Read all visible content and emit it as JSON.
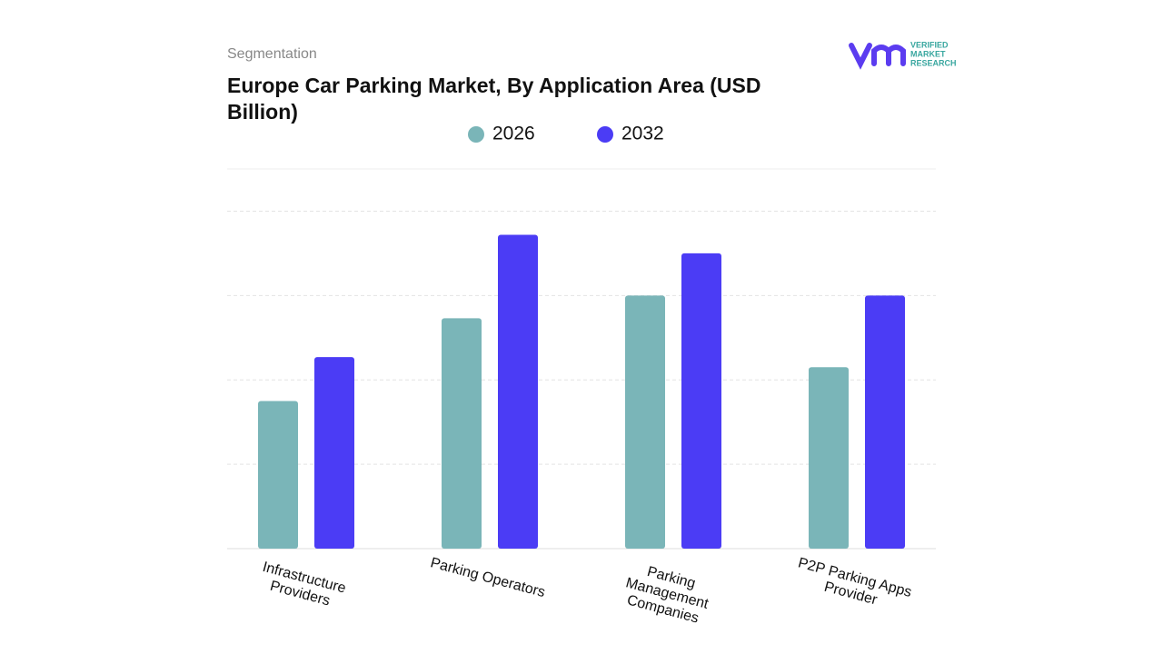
{
  "header": {
    "kicker": "Segmentation",
    "logo": [
      "VERIFIED",
      "MARKET",
      "RESEARCH"
    ]
  },
  "chart_data": {
    "type": "bar",
    "title": "Europe Car Parking Market, By Application Area (USD Billion)",
    "categories": [
      "Infrastructure Providers",
      "Parking Operators",
      "Parking Management Companies",
      "P2P Parking Apps Provider"
    ],
    "series": [
      {
        "name": "2026",
        "color": "#7ab5b8",
        "values": [
          1.75,
          2.73,
          3.0,
          2.15
        ]
      },
      {
        "name": "2032",
        "color": "#4b3cf5",
        "values": [
          2.27,
          3.72,
          3.5,
          3.0
        ]
      }
    ],
    "ylim": [
      0,
      4.5
    ],
    "yticks": [
      1,
      2,
      3,
      4
    ],
    "grid": true,
    "tick_labels": false
  }
}
